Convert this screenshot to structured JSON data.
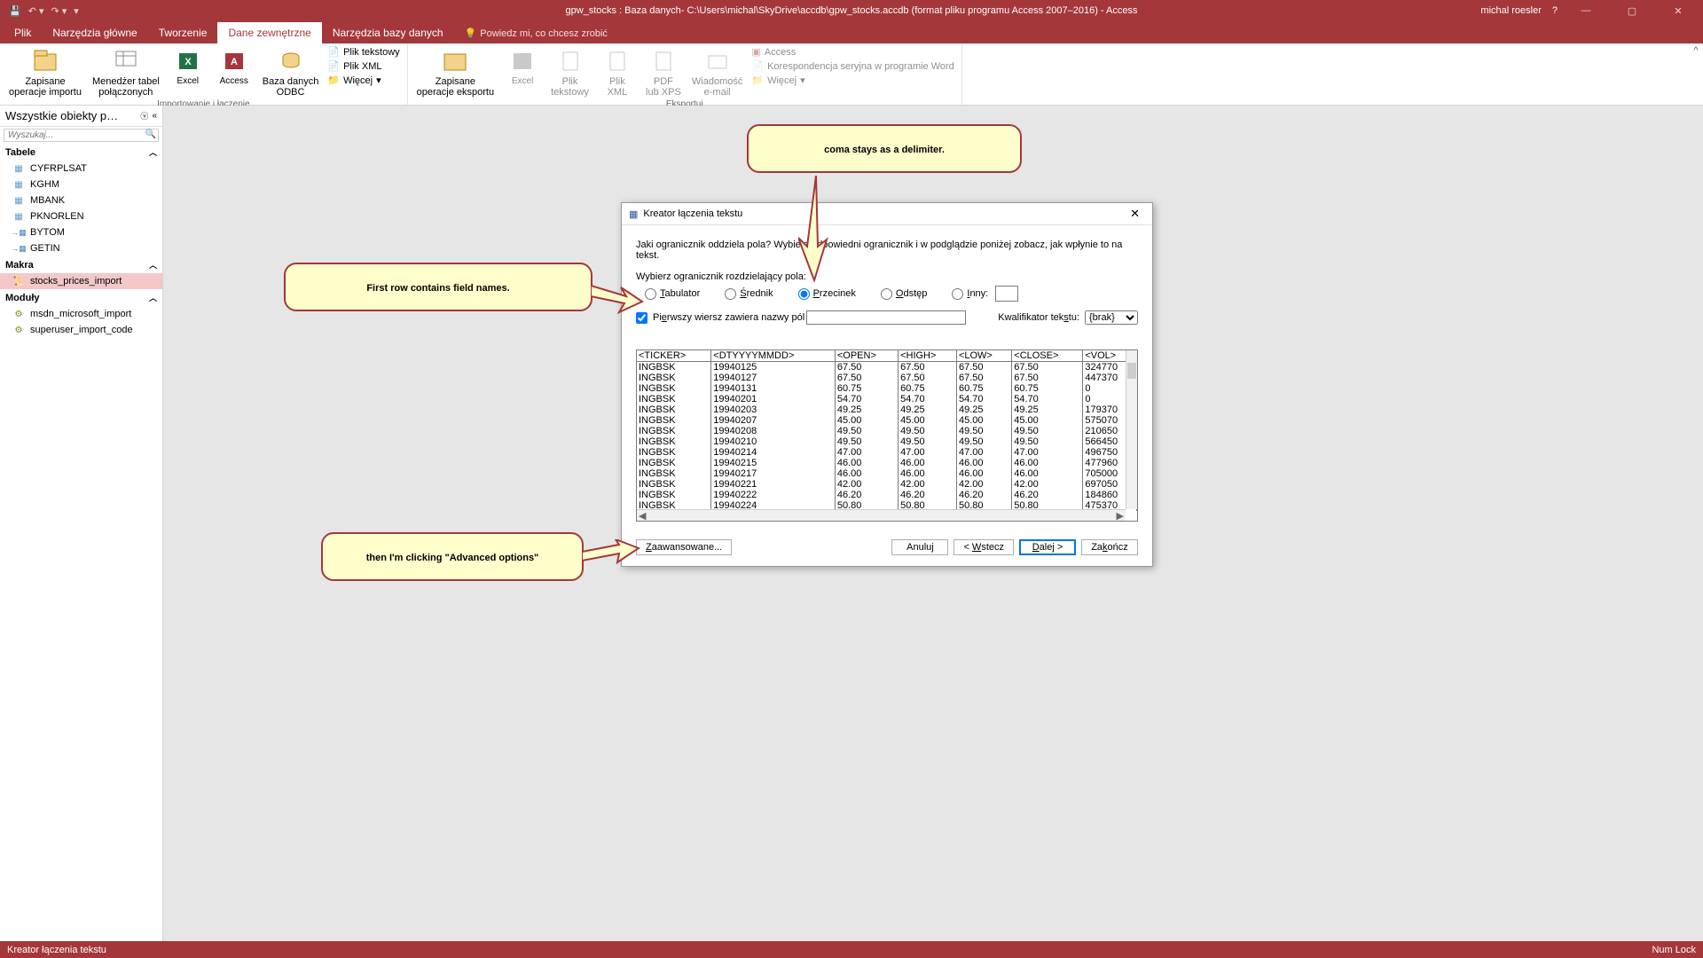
{
  "titlebar": {
    "title": "gpw_stocks : Baza danych- C:\\Users\\michal\\SkyDrive\\accdb\\gpw_stocks.accdb (format pliku programu Access 2007–2016)  -  Access",
    "user": "michal roesler"
  },
  "tabs": {
    "plik": "Plik",
    "narzGlowne": "Narzędzia główne",
    "tworzenie": "Tworzenie",
    "daneZewn": "Dane zewnętrzne",
    "narzBazy": "Narzędzia bazy danych",
    "tellMe": "Powiedz mi, co chcesz zrobić"
  },
  "ribbon": {
    "group1": {
      "savedImports": "Zapisane\noperacje importu",
      "linkedMgr": "Menedżer tabel\npołączonych",
      "excel": "Excel",
      "access": "Access",
      "odbc": "Baza danych\nODBC",
      "textFile": "Plik tekstowy",
      "xmlFile": "Plik XML",
      "more": "Więcej",
      "label": "Importowanie i łączenie"
    },
    "group2": {
      "savedExports": "Zapisane\noperacje eksportu",
      "excel": "Excel",
      "text": "Plik\ntekstowy",
      "xml": "Plik\nXML",
      "pdf": "PDF\nlub XPS",
      "email": "Wiadomość\ne-mail",
      "accessExp": "Access",
      "wordMerge": "Korespondencja seryjna w programie Word",
      "more": "Więcej",
      "label": "Eksportuj"
    }
  },
  "navPane": {
    "header": "Wszystkie obiekty p…",
    "search": "Wyszukaj...",
    "tabeleHeader": "Tabele",
    "tables": [
      "CYFRPLSAT",
      "KGHM",
      "MBANK",
      "PKNORLEN",
      "BYTOM",
      "GETIN"
    ],
    "makraHeader": "Makra",
    "macros": [
      "stocks_prices_import"
    ],
    "modulyHeader": "Moduły",
    "modules": [
      "msdn_microsoft_import",
      "superuser_import_code"
    ]
  },
  "dialog": {
    "title": "Kreator łączenia tekstu",
    "instruction": "Jaki ogranicznik oddziela pola? Wybierz odpowiedni ogranicznik i w podglądzie poniżej zobacz, jak wpłynie to na tekst.",
    "delimiterLabel": "Wybierz ogranicznik rozdzielający pola:",
    "tab": "Tabulator",
    "semicolon": "Średnik",
    "comma": "Przecinek",
    "space": "Odstęp",
    "other": "Inny:",
    "firstRow": "Pierwszy wiersz zawiera nazwy pól",
    "textQual": "Kwalifikator tekstu:",
    "textQualVal": "{brak}",
    "advanced": "Zaawansowane...",
    "cancel": "Anuluj",
    "back": "< Wstecz",
    "next": "Dalej >",
    "finish": "Zakończ",
    "headers": [
      "<TICKER>",
      "<DTYYYYMMDD>",
      "<OPEN>",
      "<HIGH>",
      "<LOW>",
      "<CLOSE>",
      "<VOL>"
    ],
    "rows": [
      [
        "INGBSK",
        "19940125",
        "67.50",
        "67.50",
        "67.50",
        "67.50",
        "324770"
      ],
      [
        "INGBSK",
        "19940127",
        "67.50",
        "67.50",
        "67.50",
        "67.50",
        "447370"
      ],
      [
        "INGBSK",
        "19940131",
        "60.75",
        "60.75",
        "60.75",
        "60.75",
        "0"
      ],
      [
        "INGBSK",
        "19940201",
        "54.70",
        "54.70",
        "54.70",
        "54.70",
        "0"
      ],
      [
        "INGBSK",
        "19940203",
        "49.25",
        "49.25",
        "49.25",
        "49.25",
        "179370"
      ],
      [
        "INGBSK",
        "19940207",
        "45.00",
        "45.00",
        "45.00",
        "45.00",
        "575070"
      ],
      [
        "INGBSK",
        "19940208",
        "49.50",
        "49.50",
        "49.50",
        "49.50",
        "210650"
      ],
      [
        "INGBSK",
        "19940210",
        "49.50",
        "49.50",
        "49.50",
        "49.50",
        "566450"
      ],
      [
        "INGBSK",
        "19940214",
        "47.00",
        "47.00",
        "47.00",
        "47.00",
        "496750"
      ],
      [
        "INGBSK",
        "19940215",
        "46.00",
        "46.00",
        "46.00",
        "46.00",
        "477960"
      ],
      [
        "INGBSK",
        "19940217",
        "46.00",
        "46.00",
        "46.00",
        "46.00",
        "705000"
      ],
      [
        "INGBSK",
        "19940221",
        "42.00",
        "42.00",
        "42.00",
        "42.00",
        "697050"
      ],
      [
        "INGBSK",
        "19940222",
        "46.20",
        "46.20",
        "46.20",
        "46.20",
        "184860"
      ],
      [
        "INGBSK",
        "19940224",
        "50.80",
        "50.80",
        "50.80",
        "50.80",
        "475370"
      ]
    ]
  },
  "callouts": {
    "c1": "coma stays as a delimiter.",
    "c2": "First row contains field names.",
    "c3": "then I'm clicking \"Advanced options\""
  },
  "statusbar": {
    "left": "Kreator łączenia tekstu",
    "right": "Num Lock"
  },
  "colors": {
    "accent": "#a4373a",
    "calloutBg": "#ffffcc"
  }
}
